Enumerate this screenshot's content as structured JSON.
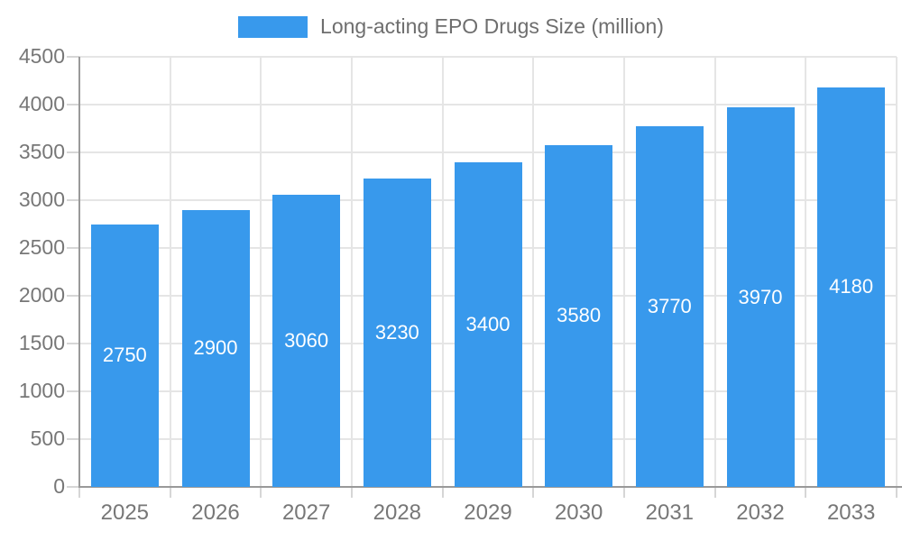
{
  "legend": {
    "label": "Long-acting EPO Drugs Size (million)"
  },
  "chart_data": {
    "type": "bar",
    "title": "Long-acting EPO Drugs Size (million)",
    "categories": [
      "2025",
      "2026",
      "2027",
      "2028",
      "2029",
      "2030",
      "2031",
      "2032",
      "2033"
    ],
    "series": [
      {
        "name": "Long-acting EPO Drugs Size (million)",
        "values": [
          2750,
          2900,
          3060,
          3230,
          3400,
          3580,
          3770,
          3970,
          4180
        ]
      }
    ],
    "xlabel": "",
    "ylabel": "",
    "ylim": [
      0,
      4500
    ],
    "ytick_step": 500,
    "y_tick_labels": [
      "0",
      "500",
      "1000",
      "1500",
      "2000",
      "2500",
      "3000",
      "3500",
      "4000",
      "4500"
    ],
    "grid": true,
    "legend_position": "top",
    "value_label_position": "inside-center"
  },
  "colors": {
    "bar_fill": "#3899EC",
    "grid_line": "#e5e5e5",
    "tick_line": "#d6d6d6",
    "axis_line": "#999999",
    "axis_text": "#777777",
    "legend_text": "#6e6e6e",
    "value_label_text": "#ffffff",
    "background": "#ffffff"
  }
}
